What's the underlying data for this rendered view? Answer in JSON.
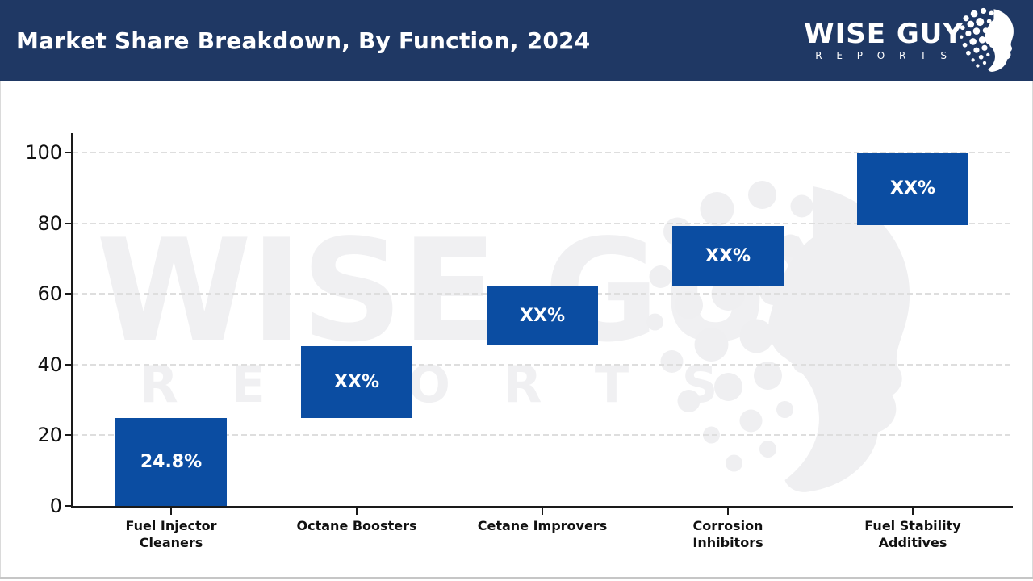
{
  "header": {
    "title": "Market Share Breakdown, By Function, 2024",
    "logo": {
      "name": "WISE GUY",
      "sub": "R E P O R T S"
    }
  },
  "watermark": {
    "name": "WISE GUY",
    "sub": "R E P O R T S"
  },
  "chart_data": {
    "type": "bar",
    "subtype": "floating-waterfall",
    "title": "Market Share Breakdown, By Function, 2024",
    "categories": [
      "Fuel Injector Cleaners",
      "Octane Boosters",
      "Cetane Improvers",
      "Corrosion Inhibitors",
      "Fuel Stability Additives"
    ],
    "category_lines": [
      [
        "Fuel Injector",
        "Cleaners"
      ],
      [
        "Octane Boosters"
      ],
      [
        "Cetane Improvers"
      ],
      [
        "Corrosion",
        "Inhibitors"
      ],
      [
        "Fuel Stability",
        "Additives"
      ]
    ],
    "segments": [
      {
        "category": "Fuel Injector Cleaners",
        "start": 0,
        "end": 24.8,
        "label": "24.8%"
      },
      {
        "category": "Octane Boosters",
        "start": 24.8,
        "end": 45.2,
        "label": "XX%"
      },
      {
        "category": "Cetane Improvers",
        "start": 45.4,
        "end": 62.0,
        "label": "XX%"
      },
      {
        "category": "Corrosion Inhibitors",
        "start": 62.2,
        "end": 79.3,
        "label": "XX%"
      },
      {
        "category": "Fuel Stability Additives",
        "start": 79.5,
        "end": 100.0,
        "label": "XX%"
      }
    ],
    "yticks": [
      0,
      20,
      40,
      60,
      80,
      100
    ],
    "ylim": [
      0,
      104.5
    ],
    "xlabel": "",
    "ylabel": "",
    "grid": "horizontal-dashed",
    "legend": "none",
    "bar_color": "#0B4DA2",
    "bar_label_color": "#FFFFFF"
  },
  "colors": {
    "header_bg": "#1F3864",
    "header_text": "#FFFFFF",
    "watermark": "#F0F0F2",
    "bar": "#0B4DA2",
    "gridline": "#DEDEDE",
    "axis": "#1A1A1A",
    "bottom_border": "#C6C6C6"
  }
}
